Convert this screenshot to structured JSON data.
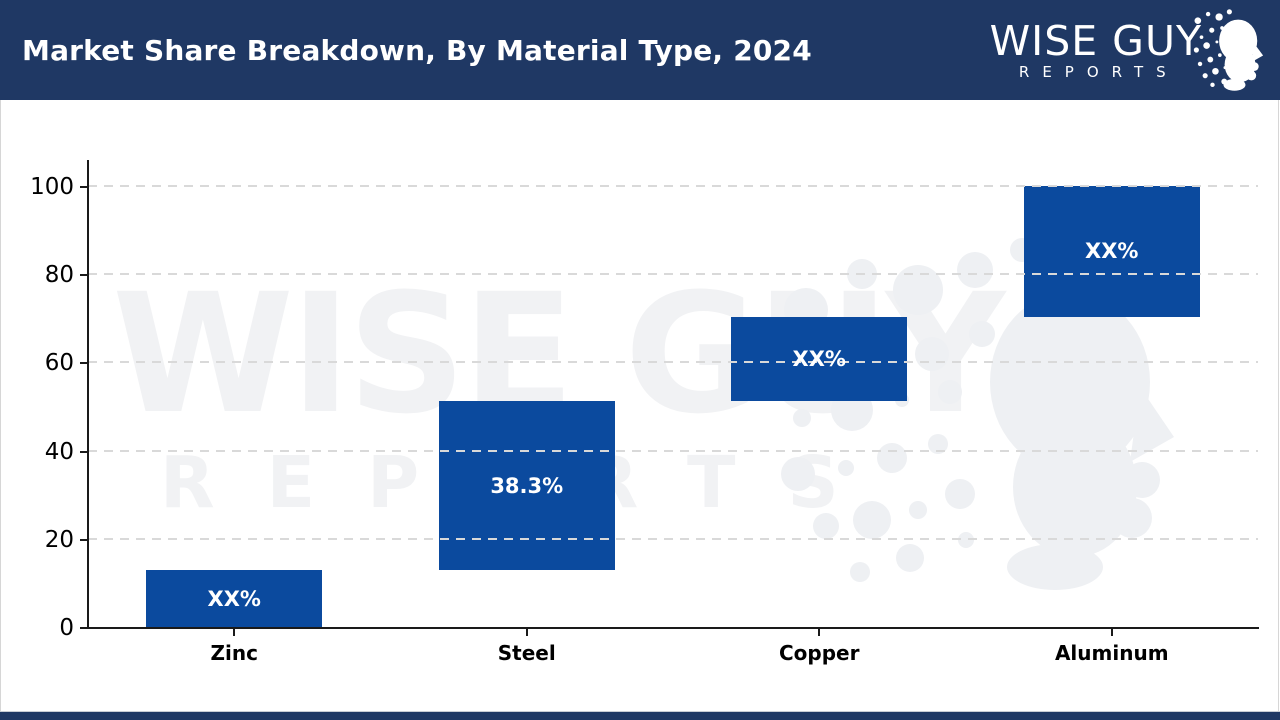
{
  "header": {
    "title": "Market Share Breakdown, By Material Type, 2024",
    "bg_color": "#1f3864",
    "logo": {
      "line1": "WISE GUY",
      "line2": "REPORTS"
    }
  },
  "watermark": {
    "line1": "WISE GUY",
    "line2": "REPORTS",
    "color": "#f1f2f4"
  },
  "footer": {
    "bg_color": "#1f3864"
  },
  "chart_data": {
    "type": "bar",
    "subtype": "waterfall-floating-bars",
    "title": "Market Share Breakdown, By Material Type, 2024",
    "categories": [
      "Zinc",
      "Steel",
      "Copper",
      "Aluminum"
    ],
    "bars": [
      {
        "category": "Zinc",
        "start": 0,
        "end": 12.9,
        "label": "XX%"
      },
      {
        "category": "Steel",
        "start": 12.9,
        "end": 51.2,
        "label": "38.3%"
      },
      {
        "category": "Copper",
        "start": 51.2,
        "end": 70.3,
        "label": "XX%"
      },
      {
        "category": "Aluminum",
        "start": 70.3,
        "end": 100,
        "label": "XX%"
      }
    ],
    "yticks": [
      0,
      20,
      40,
      60,
      80,
      100
    ],
    "ylim": [
      0,
      106
    ],
    "xlabel": "",
    "ylabel": "",
    "grid": {
      "axis": "y",
      "style": "dashed",
      "color": "#d9d9d9",
      "above_bars": true
    },
    "legend": "none",
    "bar_color": "#0b4a9e",
    "bar_label_color": "#ffffff",
    "axis_color": "#1a1a1a"
  }
}
